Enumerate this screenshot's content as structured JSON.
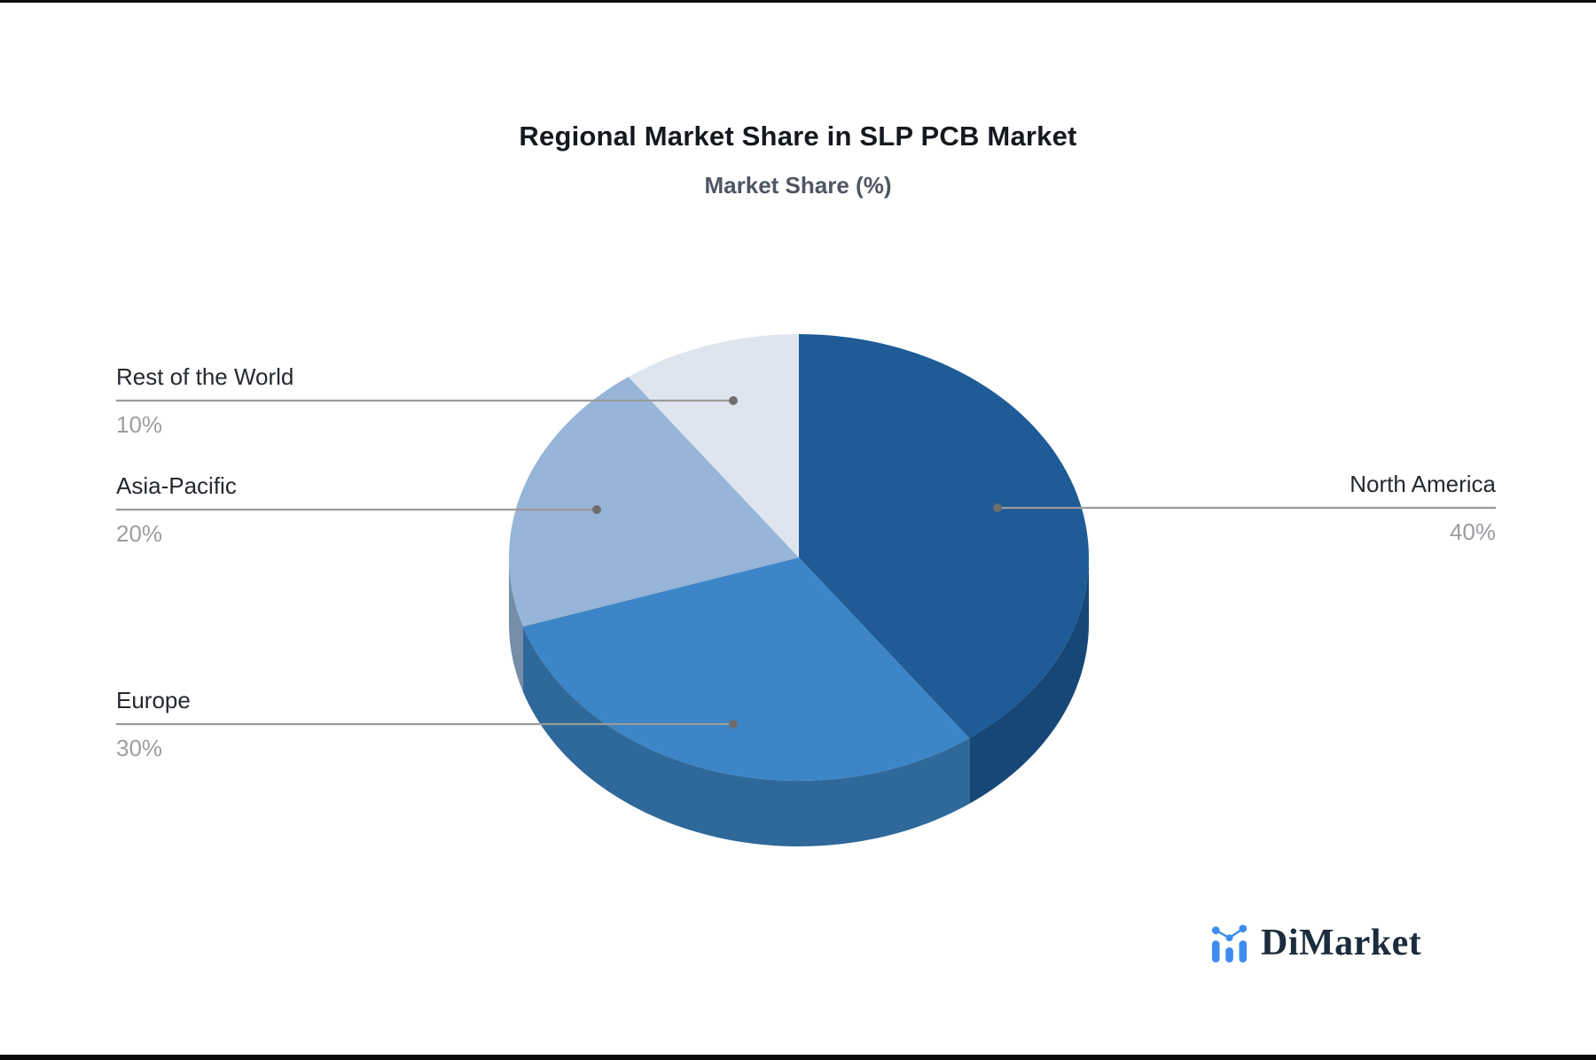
{
  "chart_data": {
    "type": "pie",
    "title": "Regional Market Share in SLP PCB Market",
    "subtitle": "Market Share (%)",
    "unit": "%",
    "effect": "3d-depth",
    "start_angle": "12-oclock-clockwise",
    "legend": "none (leader-line callouts)",
    "slices": [
      {
        "label": "North America",
        "value": 40,
        "display": "40%",
        "color": "#1E5B97"
      },
      {
        "label": "Europe",
        "value": 30,
        "display": "30%",
        "color": "#3C85C6"
      },
      {
        "label": "Asia-Pacific",
        "value": 20,
        "display": "20%",
        "color": "#96B5D8"
      },
      {
        "label": "Rest of the World",
        "value": 10,
        "display": "10%",
        "color": "#DFE5EF"
      }
    ]
  },
  "branding": {
    "logo_text": "DiMarket",
    "logo_icon": "bar-line-chart-icon"
  },
  "colors": {
    "background": "#ffffff",
    "frame": "#0a0a0a",
    "title": "#15191e",
    "subtitle": "#4e5763",
    "label_text": "#24292f",
    "value_text": "#9a9da1",
    "leader_line": "#9b9b9b",
    "leader_dot": "#6e6e6e",
    "logo_text": "#1c2c3d",
    "logo_icon_blue": "#3f8cef"
  }
}
